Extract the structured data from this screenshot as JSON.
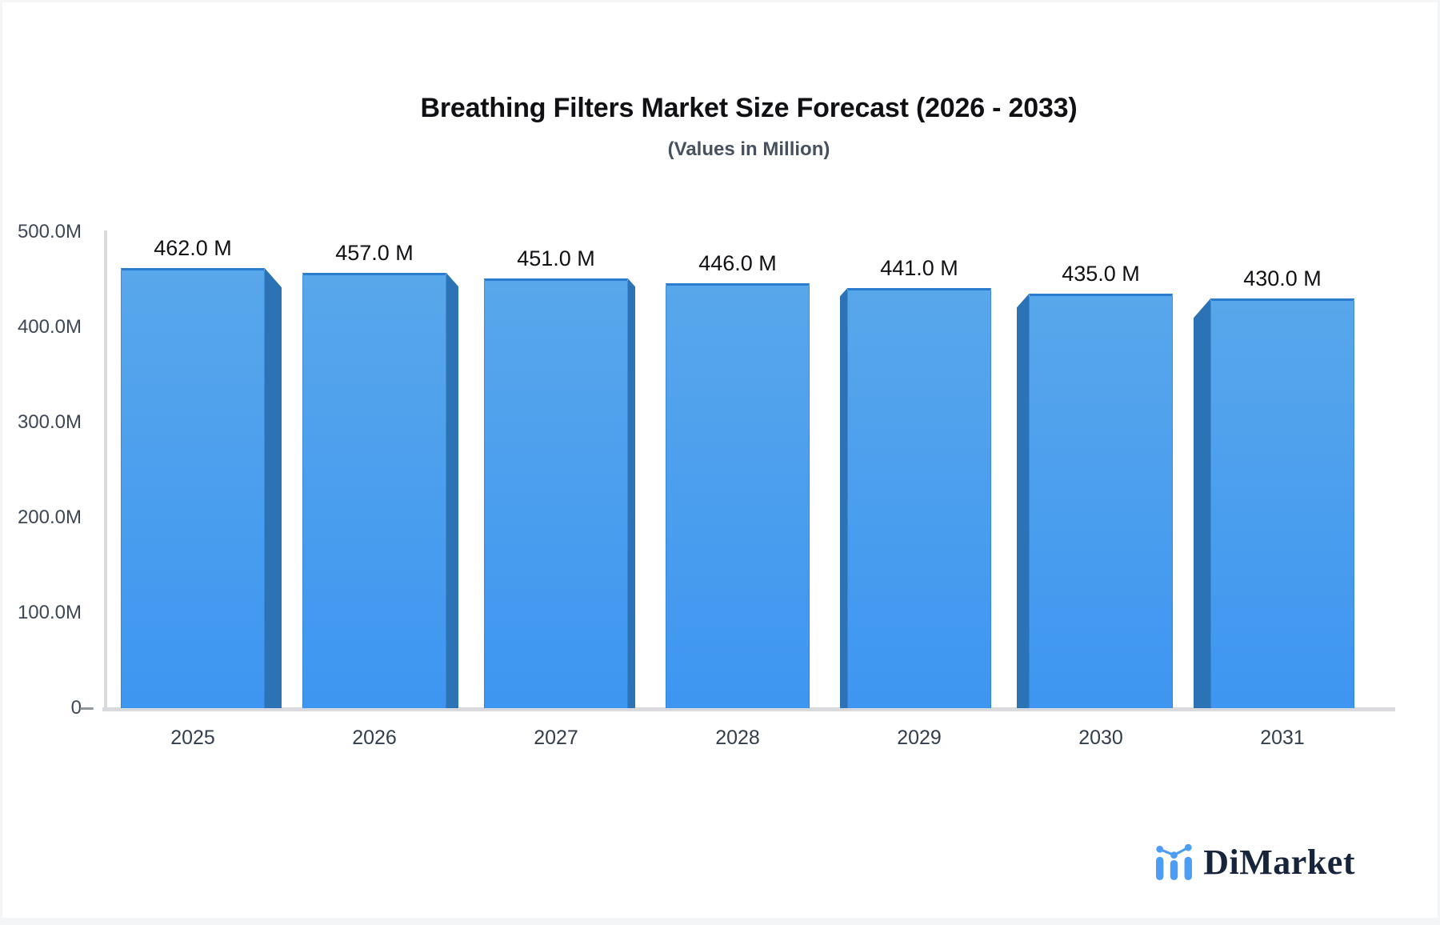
{
  "page": {
    "background": "#f4f5f7",
    "surface": "#ffffff"
  },
  "chart_data": {
    "type": "bar",
    "title": "Breathing Filters Market Size Forecast (2026 - 2033)",
    "subtitle": "(Values in Million)",
    "categories": [
      "2025",
      "2026",
      "2027",
      "2028",
      "2029",
      "2030",
      "2031"
    ],
    "values": [
      462,
      457,
      451,
      446,
      441,
      435,
      430
    ],
    "value_labels": [
      "462.0 M",
      "457.0 M",
      "451.0 M",
      "446.0 M",
      "441.0 M",
      "435.0 M",
      "430.0 M"
    ],
    "unit": "Million",
    "ylim": [
      0,
      500
    ],
    "y_ticks": [
      {
        "value": 500,
        "label": "500.0M"
      },
      {
        "value": 400,
        "label": "400.0M"
      },
      {
        "value": 300,
        "label": "300.0M"
      },
      {
        "value": 200,
        "label": "200.0M"
      },
      {
        "value": 100,
        "label": "100.0M"
      },
      {
        "value": 0,
        "label": "0",
        "dash": true
      }
    ],
    "grid": false,
    "legend": false,
    "style_3d": true,
    "colors": {
      "bar_top": "#58a7eb",
      "bar_bottom": "#3e96f1",
      "bar_edge": "#2a7ccf",
      "bar_side": "#2c73b6",
      "axis_line": "#d8dade",
      "tick_text": "#3e4755",
      "category_text": "#333d4c",
      "value_text": "#101114"
    }
  },
  "footer": {
    "brand": "DiMarket",
    "logo_icon": "bar-chart-trend-icon",
    "brand_color": "#16243c",
    "logo_blue": "#4c9ef5"
  }
}
